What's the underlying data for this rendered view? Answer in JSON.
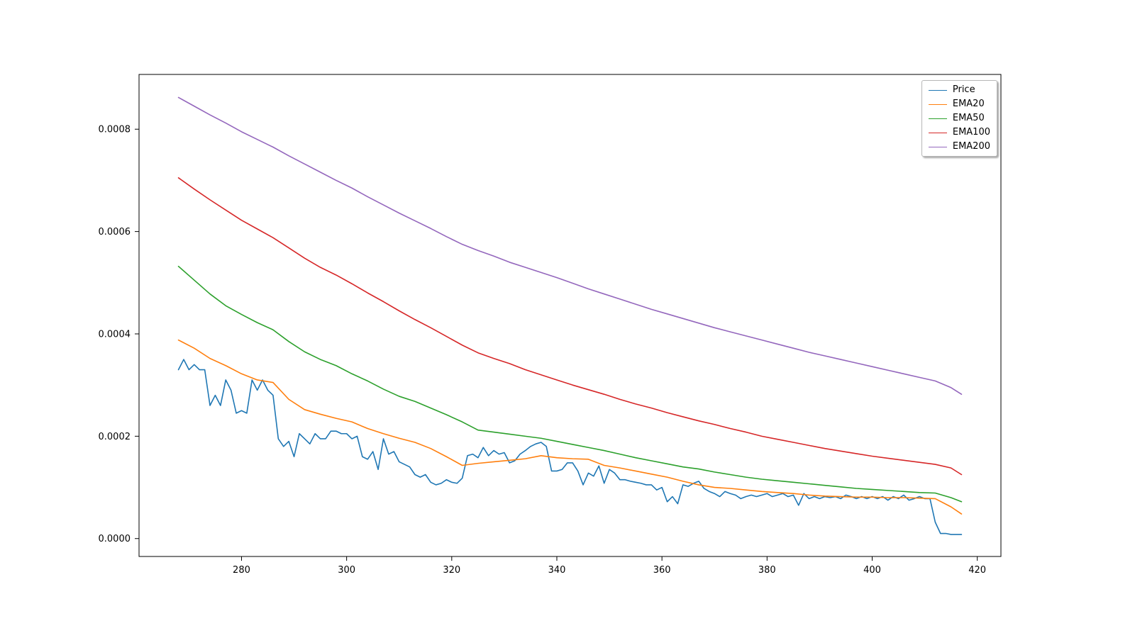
{
  "figure": {
    "background": "#ffffff"
  },
  "chart_data": {
    "type": "line",
    "title": "",
    "xlabel": "",
    "ylabel": "",
    "grid": false,
    "legend_position": "upper right",
    "xlim": [
      260.5,
      424.5
    ],
    "ylim": [
      -3.5e-05,
      0.000907
    ],
    "x_ticks": [
      280,
      300,
      320,
      340,
      360,
      380,
      400,
      420
    ],
    "y_ticks": [
      0,
      0.0002,
      0.0004,
      0.0006,
      0.0008
    ],
    "y_tick_labels": [
      "0.0000",
      "0.0002",
      "0.0004",
      "0.0006",
      "0.0008"
    ],
    "ema_x": [
      268,
      271,
      274,
      277,
      280,
      283,
      286,
      289,
      292,
      295,
      298,
      301,
      304,
      307,
      310,
      313,
      316,
      319,
      322,
      325,
      328,
      331,
      334,
      337,
      340,
      343,
      346,
      349,
      352,
      355,
      358,
      361,
      364,
      367,
      370,
      373,
      376,
      379,
      382,
      385,
      388,
      391,
      394,
      397,
      400,
      403,
      406,
      409,
      412,
      415,
      417
    ],
    "series": [
      {
        "name": "Price",
        "color": "#1f77b4",
        "x_start": 268,
        "x_step": 1,
        "y": [
          0.00033,
          0.00035,
          0.00033,
          0.00034,
          0.00033,
          0.00033,
          0.00026,
          0.00028,
          0.00026,
          0.00031,
          0.00029,
          0.000245,
          0.00025,
          0.000245,
          0.00031,
          0.00029,
          0.00031,
          0.00029,
          0.00028,
          0.000195,
          0.00018,
          0.00019,
          0.00016,
          0.000205,
          0.000195,
          0.000185,
          0.000205,
          0.000195,
          0.000195,
          0.00021,
          0.00021,
          0.000205,
          0.000205,
          0.000195,
          0.0002,
          0.00016,
          0.000155,
          0.00017,
          0.000135,
          0.000195,
          0.000165,
          0.00017,
          0.00015,
          0.000145,
          0.00014,
          0.000125,
          0.00012,
          0.000125,
          0.00011,
          0.000105,
          0.000108,
          0.000115,
          0.00011,
          0.000108,
          0.000118,
          0.000162,
          0.000165,
          0.000158,
          0.000178,
          0.000162,
          0.000172,
          0.000165,
          0.000168,
          0.000148,
          0.000152,
          0.000165,
          0.000172,
          0.00018,
          0.000185,
          0.000188,
          0.00018,
          0.000132,
          0.000132,
          0.000135,
          0.000148,
          0.000148,
          0.000132,
          0.000105,
          0.000128,
          0.000122,
          0.000142,
          0.000108,
          0.000135,
          0.000128,
          0.000115,
          0.000115,
          0.000112,
          0.00011,
          0.000108,
          0.000105,
          0.000105,
          9.5e-05,
          0.0001,
          7.2e-05,
          8.2e-05,
          6.8e-05,
          0.000105,
          0.000102,
          0.000108,
          0.000112,
          9.8e-05,
          9.2e-05,
          8.8e-05,
          8.2e-05,
          9.2e-05,
          8.8e-05,
          8.5e-05,
          7.8e-05,
          8.2e-05,
          8.5e-05,
          8.2e-05,
          8.5e-05,
          8.8e-05,
          8.2e-05,
          8.5e-05,
          8.8e-05,
          8.2e-05,
          8.5e-05,
          6.5e-05,
          8.8e-05,
          7.8e-05,
          8.2e-05,
          7.8e-05,
          8.2e-05,
          8e-05,
          8.2e-05,
          7.8e-05,
          8.5e-05,
          8.2e-05,
          7.8e-05,
          8.2e-05,
          7.8e-05,
          8.2e-05,
          7.8e-05,
          8.2e-05,
          7.5e-05,
          8.2e-05,
          7.8e-05,
          8.5e-05,
          7.5e-05,
          7.8e-05,
          8.2e-05,
          7.8e-05,
          7.8e-05,
          3.2e-05,
          1e-05,
          1e-05,
          8e-06,
          8e-06,
          8e-06
        ]
      },
      {
        "name": "EMA20",
        "color": "#ff7f0e",
        "x_ref": "ema_x",
        "y": [
          0.000388,
          0.000372,
          0.000352,
          0.000338,
          0.000322,
          0.00031,
          0.000305,
          0.000272,
          0.000252,
          0.000243,
          0.000235,
          0.000228,
          0.000215,
          0.000205,
          0.000196,
          0.000188,
          0.000176,
          0.00016,
          0.000143,
          0.000147,
          0.00015,
          0.000153,
          0.000156,
          0.000162,
          0.000158,
          0.000156,
          0.000155,
          0.000143,
          0.000138,
          0.000132,
          0.000126,
          0.00012,
          0.000112,
          0.000105,
          0.0001,
          9.8e-05,
          9.5e-05,
          9.2e-05,
          9e-05,
          8.8e-05,
          8.5e-05,
          8.3e-05,
          8.2e-05,
          8.1e-05,
          8.1e-05,
          8e-05,
          8e-05,
          7.9e-05,
          7.8e-05,
          6.2e-05,
          4.8e-05
        ]
      },
      {
        "name": "EMA50",
        "color": "#2ca02c",
        "x_ref": "ema_x",
        "y": [
          0.000532,
          0.000505,
          0.000478,
          0.000455,
          0.000438,
          0.000422,
          0.000408,
          0.000385,
          0.000365,
          0.00035,
          0.000338,
          0.000322,
          0.000308,
          0.000292,
          0.000278,
          0.000268,
          0.000255,
          0.000242,
          0.000228,
          0.000212,
          0.000208,
          0.000204,
          0.0002,
          0.000196,
          0.00019,
          0.000184,
          0.000178,
          0.000172,
          0.000165,
          0.000158,
          0.000152,
          0.000146,
          0.00014,
          0.000136,
          0.00013,
          0.000125,
          0.00012,
          0.000116,
          0.000113,
          0.00011,
          0.000107,
          0.000104,
          0.000101,
          9.8e-05,
          9.6e-05,
          9.4e-05,
          9.2e-05,
          9e-05,
          8.9e-05,
          8e-05,
          7.2e-05
        ]
      },
      {
        "name": "EMA100",
        "color": "#d62728",
        "x_ref": "ema_x",
        "y": [
          0.000705,
          0.000683,
          0.000662,
          0.000642,
          0.000622,
          0.000605,
          0.000588,
          0.000568,
          0.000548,
          0.00053,
          0.000515,
          0.000498,
          0.00048,
          0.000463,
          0.000445,
          0.000428,
          0.000412,
          0.000395,
          0.000378,
          0.000363,
          0.000352,
          0.000342,
          0.00033,
          0.00032,
          0.00031,
          0.0003,
          0.000291,
          0.000282,
          0.000272,
          0.000263,
          0.000255,
          0.000246,
          0.000238,
          0.00023,
          0.000223,
          0.000215,
          0.000208,
          0.0002,
          0.000194,
          0.000188,
          0.000182,
          0.000176,
          0.000171,
          0.000166,
          0.000161,
          0.000157,
          0.000153,
          0.000149,
          0.000145,
          0.000138,
          0.000125
        ]
      },
      {
        "name": "EMA200",
        "color": "#9467bd",
        "x_ref": "ema_x",
        "y": [
          0.000862,
          0.000845,
          0.000828,
          0.000812,
          0.000795,
          0.00078,
          0.000765,
          0.000748,
          0.000732,
          0.000716,
          0.0007,
          0.000685,
          0.000668,
          0.000652,
          0.000636,
          0.000621,
          0.000606,
          0.00059,
          0.000575,
          0.000563,
          0.000552,
          0.00054,
          0.00053,
          0.00052,
          0.00051,
          0.000499,
          0.000488,
          0.000478,
          0.000468,
          0.000458,
          0.000448,
          0.000439,
          0.00043,
          0.000421,
          0.000412,
          0.000404,
          0.000396,
          0.000388,
          0.00038,
          0.000372,
          0.000364,
          0.000357,
          0.00035,
          0.000343,
          0.000336,
          0.000329,
          0.000322,
          0.000315,
          0.000308,
          0.000295,
          0.000282
        ]
      }
    ]
  }
}
